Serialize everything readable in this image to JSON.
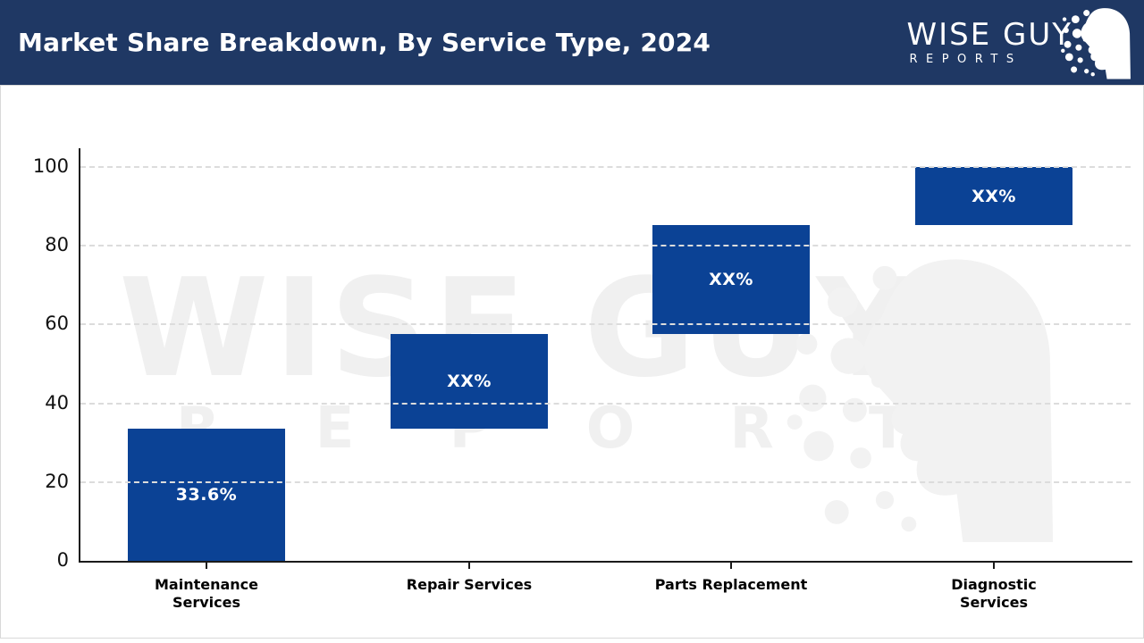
{
  "header": {
    "title": "Market Share Breakdown, By Service Type, 2024",
    "logo": {
      "line1": "WISE GUY",
      "line2": "REPORTS"
    }
  },
  "watermark": {
    "line1": "WISE GUY",
    "line2": "R E P O R T S"
  },
  "colors": {
    "header_bg": "#1f3864",
    "bar": "#0b4295",
    "grid": "#dcdcdc",
    "axis": "#1a1a1a",
    "watermark": "#f0f0f0",
    "bar_label": "#ffffff"
  },
  "chart_data": {
    "type": "bar",
    "subtype": "waterfall",
    "title": "Market Share Breakdown, By Service Type, 2024",
    "xlabel": "",
    "ylabel": "",
    "ylim": [
      0,
      100
    ],
    "yticks": [
      0,
      20,
      40,
      60,
      80,
      100
    ],
    "grid": "horizontal-dashed",
    "legend": "none",
    "categories": [
      "Maintenance\nServices",
      "Repair Services",
      "Parts Replacement",
      "Diagnostic\nServices"
    ],
    "segments": [
      {
        "category": "Maintenance Services",
        "start": 0,
        "end": 33.6,
        "label": "33.6%"
      },
      {
        "category": "Repair Services",
        "start": 33.6,
        "end": 57.6,
        "label": "XX%"
      },
      {
        "category": "Parts Replacement",
        "start": 57.6,
        "end": 85.2,
        "label": "XX%"
      },
      {
        "category": "Diagnostic Services",
        "start": 85.2,
        "end": 100,
        "label": "XX%"
      }
    ]
  }
}
